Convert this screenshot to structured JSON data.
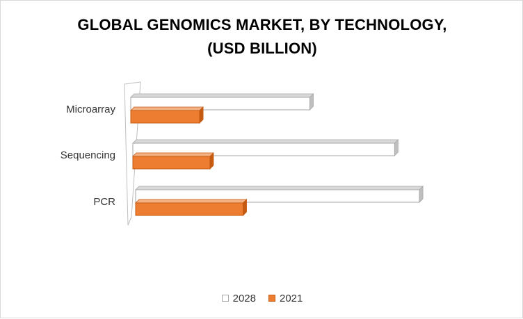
{
  "chart_data": {
    "type": "bar",
    "orientation": "horizontal",
    "title_lines": [
      "GLOBAL GENOMICS MARKET, BY TECHNOLOGY,",
      "(USD BILLION)"
    ],
    "categories": [
      "Microarray",
      "Sequencing",
      "PCR"
    ],
    "series": [
      {
        "name": "2028",
        "values": [
          6.5,
          9.5,
          10.3
        ],
        "color": "#ffffff",
        "edge": "#a6a6a6"
      },
      {
        "name": "2021",
        "values": [
          2.5,
          2.8,
          3.9
        ],
        "color": "#ed7d31",
        "edge": "#c55a11"
      }
    ],
    "xlim": [
      0,
      10.5
    ],
    "legend_position": "bottom",
    "grid": false
  }
}
